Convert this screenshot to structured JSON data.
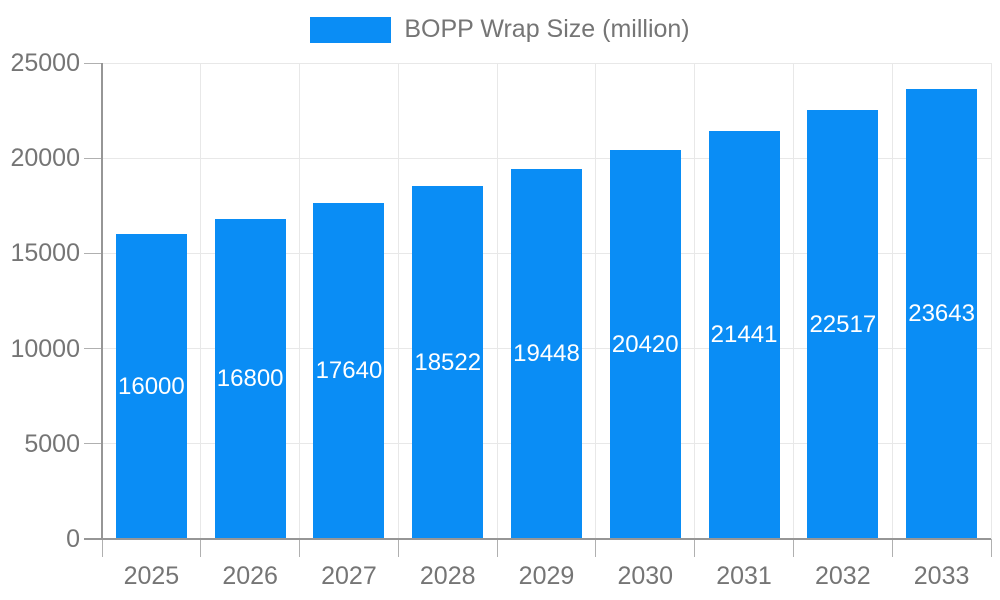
{
  "chart_data": {
    "type": "bar",
    "title": "",
    "categories": [
      "2025",
      "2026",
      "2027",
      "2028",
      "2029",
      "2030",
      "2031",
      "2032",
      "2033"
    ],
    "series": [
      {
        "name": "BOPP Wrap Size (million)",
        "values": [
          16000,
          16800,
          17640,
          18522,
          19448,
          20420,
          21441,
          22517,
          23643
        ]
      }
    ],
    "xlabel": "",
    "ylabel": "",
    "ylim": [
      0,
      25000
    ],
    "yticks": [
      0,
      5000,
      10000,
      15000,
      20000,
      25000
    ],
    "grid": "on",
    "legend_position": "top-center",
    "value_labels": "inside-center",
    "colors": {
      "bar": "#0a8df5",
      "axis_line": "#969696",
      "tick_line": "#b0b0b0",
      "grid_line": "#e8e8e8",
      "axis_text": "#757575",
      "legend_text": "#757575",
      "value_text": "#ffffff",
      "background": "#ffffff"
    }
  }
}
